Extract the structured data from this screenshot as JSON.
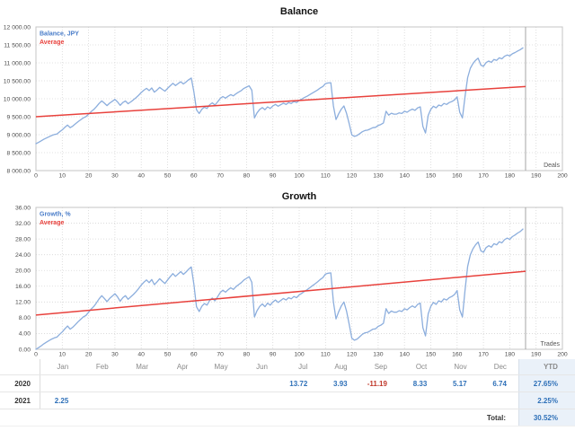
{
  "colors": {
    "series_blue": "#8caedd",
    "average_red": "#e8413c",
    "legend_blue": "#4a7dc9",
    "grid": "#d6d6d6",
    "plot_border": "#c5c5c5",
    "separator": "#a5a5a5",
    "value_blue": "#2e70b8",
    "value_negative_red": "#c0392b",
    "ytd_bg": "#eaf1f9"
  },
  "chart_data": [
    {
      "type": "line",
      "title": "Balance",
      "x_axis_label": "Deals",
      "x_ticks": [
        "0",
        "10",
        "20",
        "30",
        "40",
        "50",
        "60",
        "70",
        "80",
        "90",
        "100",
        "110",
        "120",
        "130",
        "140",
        "150",
        "160",
        "170",
        "180",
        "190",
        "200"
      ],
      "x_range": [
        0,
        200
      ],
      "y_ticks": [
        "12 000.00",
        "11 500.00",
        "11 000.00",
        "10 500.00",
        "10 000.00",
        "9 500.00",
        "9 000.00",
        "8 500.00",
        "8 000.00"
      ],
      "y_range": [
        8000,
        12000
      ],
      "legend": [
        {
          "label": "Balance, JPY",
          "color": "#4a7dc9"
        },
        {
          "label": "Average",
          "color": "#e8413c"
        }
      ],
      "data_end_x": 186,
      "series": [
        {
          "name": "Balance, JPY",
          "kind": "curve",
          "derived_from": "growth_pct_of_initial",
          "initial_balance": 8750
        },
        {
          "name": "Average",
          "kind": "trend",
          "trend_endpoints": [
            9500,
            10340
          ]
        }
      ]
    },
    {
      "type": "line",
      "title": "Growth",
      "x_axis_label": "Trades",
      "x_ticks": [
        "0",
        "10",
        "20",
        "30",
        "40",
        "50",
        "60",
        "70",
        "80",
        "90",
        "100",
        "110",
        "120",
        "130",
        "140",
        "150",
        "160",
        "170",
        "180",
        "190",
        "200"
      ],
      "x_range": [
        0,
        200
      ],
      "y_ticks": [
        "36.00",
        "32.00",
        "28.00",
        "24.00",
        "20.00",
        "16.00",
        "12.00",
        "8.00",
        "4.00",
        "0.00"
      ],
      "y_range": [
        0,
        36
      ],
      "legend": [
        {
          "label": "Growth, %",
          "color": "#4a7dc9"
        },
        {
          "label": "Average",
          "color": "#e8413c"
        }
      ],
      "data_end_x": 186,
      "series": [
        {
          "name": "Growth, %",
          "kind": "curve",
          "values": [
            0.0,
            0.4,
            0.9,
            1.4,
            1.8,
            2.2,
            2.6,
            2.9,
            3.1,
            3.8,
            4.4,
            5.2,
            5.9,
            5.1,
            5.6,
            6.3,
            7.0,
            7.6,
            8.2,
            8.6,
            9.4,
            10.2,
            10.9,
            11.8,
            12.8,
            13.6,
            12.9,
            12.1,
            12.9,
            13.5,
            14.1,
            13.3,
            12.2,
            13.1,
            13.6,
            12.7,
            13.3,
            13.9,
            14.6,
            15.4,
            16.3,
            17.0,
            17.6,
            16.9,
            17.7,
            16.4,
            17.1,
            17.9,
            17.3,
            16.7,
            17.6,
            18.4,
            19.2,
            18.5,
            19.1,
            19.7,
            19.0,
            19.6,
            20.3,
            20.9,
            16.5,
            10.8,
            9.6,
            10.9,
            11.6,
            11.2,
            12.4,
            13.0,
            12.3,
            13.3,
            14.4,
            15.0,
            14.5,
            15.1,
            15.6,
            15.2,
            15.9,
            16.4,
            16.9,
            17.6,
            18.0,
            18.4,
            17.0,
            8.2,
            9.8,
            10.9,
            11.5,
            10.8,
            11.7,
            11.2,
            12.0,
            12.5,
            11.9,
            12.4,
            12.9,
            12.5,
            13.1,
            12.8,
            13.4,
            13.1,
            13.8,
            14.2,
            14.7,
            15.1,
            15.6,
            16.1,
            16.6,
            17.1,
            17.7,
            18.2,
            19.1,
            19.3,
            19.4,
            12.0,
            7.7,
            9.5,
            11.0,
            12.0,
            9.7,
            6.3,
            2.8,
            2.3,
            2.6,
            3.2,
            3.8,
            4.2,
            4.3,
            4.7,
            5.1,
            5.2,
            5.8,
            6.1,
            6.6,
            10.3,
            9.1,
            9.7,
            9.4,
            9.4,
            9.8,
            9.6,
            10.3,
            10.0,
            10.6,
            11.0,
            10.6,
            11.4,
            11.7,
            5.5,
            3.4,
            9.0,
            10.9,
            11.9,
            11.4,
            12.3,
            12.0,
            12.8,
            12.5,
            13.1,
            13.4,
            13.9,
            14.9,
            10.0,
            8.2,
            15.0,
            21.0,
            24.0,
            25.5,
            26.5,
            27.2,
            25.0,
            24.6,
            25.8,
            26.3,
            25.9,
            26.8,
            26.5,
            27.3,
            27.0,
            27.8,
            28.2,
            27.9,
            28.6,
            29.0,
            29.5,
            29.9,
            30.5
          ]
        },
        {
          "name": "Average",
          "kind": "trend",
          "trend_endpoints": [
            8.7,
            19.8
          ]
        }
      ]
    }
  ],
  "monthly_table": {
    "columns": [
      "Jan",
      "Feb",
      "Mar",
      "Apr",
      "May",
      "Jun",
      "Jul",
      "Aug",
      "Sep",
      "Oct",
      "Nov",
      "Dec"
    ],
    "ytd_header": "YTD",
    "rows": [
      {
        "year": "2020",
        "months": [
          "",
          "",
          "",
          "",
          "",
          "",
          "13.72",
          "3.93",
          "-11.19",
          "8.33",
          "5.17",
          "6.74"
        ],
        "ytd": "27.65%"
      },
      {
        "year": "2021",
        "months": [
          "2.25",
          "",
          "",
          "",
          "",
          "",
          "",
          "",
          "",
          "",
          "",
          ""
        ],
        "ytd": "2.25%"
      }
    ],
    "total_label": "Total:",
    "total_value": "30.52%"
  }
}
